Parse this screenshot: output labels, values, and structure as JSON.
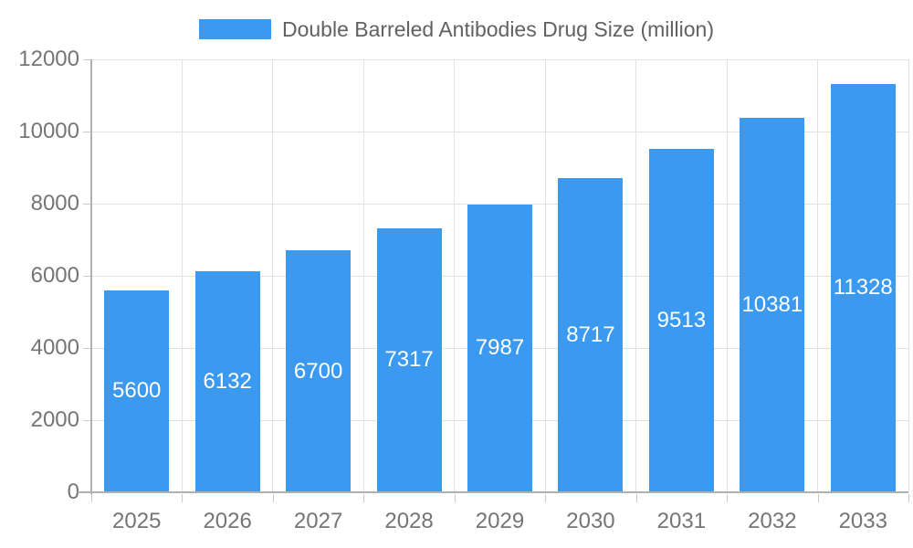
{
  "chart_data": {
    "type": "bar",
    "title": "Double Barreled Antibodies Drug Size (million)",
    "legend": {
      "position": "top-center",
      "items": [
        {
          "label": "Double Barreled Antibodies Drug Size (million)",
          "color": "#3b9af0"
        }
      ]
    },
    "categories": [
      "2025",
      "2026",
      "2027",
      "2028",
      "2029",
      "2030",
      "2031",
      "2032",
      "2033"
    ],
    "values": [
      5600,
      6132,
      6700,
      7317,
      7987,
      8717,
      9513,
      10381,
      11328
    ],
    "xlabel": "",
    "ylabel": "",
    "ylim": [
      0,
      12000
    ],
    "yticks": [
      0,
      2000,
      4000,
      6000,
      8000,
      10000,
      12000
    ],
    "grid": "horizontal and vertical light gray gridlines",
    "value_labels": "white, centered inside bars",
    "colors": {
      "bar": "#3b9af0",
      "bar_label_text": "#ffffff",
      "axis_text": "#757575",
      "legend_text": "#616161",
      "axis_line": "#b0b0b0",
      "tick_mark": "#c8c8c8",
      "gridline": "#e2e2e2",
      "background": "#ffffff"
    }
  }
}
